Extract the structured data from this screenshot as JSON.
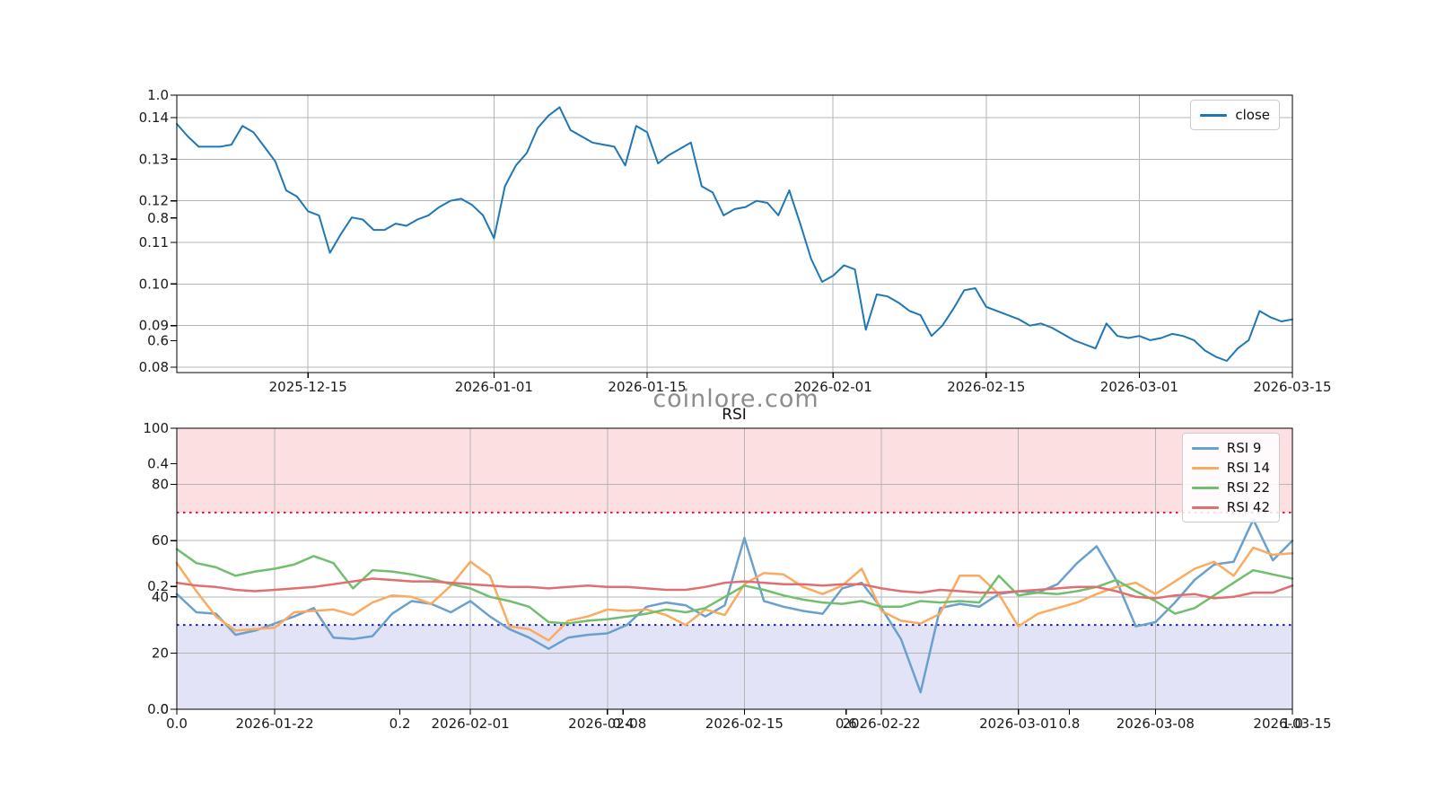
{
  "watermark": "coinlore.com",
  "overlay_axis": {
    "y_labels": [
      "1.0",
      "0.8",
      "0.6",
      "0.4",
      "0.2",
      "0.0"
    ],
    "x_labels": [
      "0.0",
      "0.2",
      "0.4",
      "0.6",
      "0.8",
      "1.0"
    ]
  },
  "chart_data": [
    {
      "type": "line",
      "name": "price",
      "title": "",
      "legend_position": "upper right",
      "grid": true,
      "ylim": [
        0.0787,
        0.1454
      ],
      "yticks": [
        0.08,
        0.09,
        0.1,
        0.11,
        0.12,
        0.13,
        0.14
      ],
      "ytick_labels": [
        "0.08",
        "0.09",
        "0.10",
        "0.11",
        "0.12",
        "0.13",
        "0.14"
      ],
      "xtick_indices": [
        12,
        29,
        43,
        60,
        74,
        88,
        102
      ],
      "x": [
        "2025-12-03",
        "2025-12-04",
        "2025-12-05",
        "2025-12-06",
        "2025-12-07",
        "2025-12-08",
        "2025-12-09",
        "2025-12-10",
        "2025-12-11",
        "2025-12-12",
        "2025-12-13",
        "2025-12-14",
        "2025-12-15",
        "2025-12-16",
        "2025-12-17",
        "2025-12-18",
        "2025-12-19",
        "2025-12-20",
        "2025-12-21",
        "2025-12-22",
        "2025-12-23",
        "2025-12-24",
        "2025-12-25",
        "2025-12-26",
        "2025-12-27",
        "2025-12-28",
        "2025-12-29",
        "2025-12-30",
        "2025-12-31",
        "2026-01-01",
        "2026-01-02",
        "2026-01-03",
        "2026-01-04",
        "2026-01-05",
        "2026-01-06",
        "2026-01-07",
        "2026-01-08",
        "2026-01-09",
        "2026-01-10",
        "2026-01-11",
        "2026-01-12",
        "2026-01-13",
        "2026-01-14",
        "2026-01-15",
        "2026-01-16",
        "2026-01-17",
        "2026-01-18",
        "2026-01-19",
        "2026-01-20",
        "2026-01-21",
        "2026-01-22",
        "2026-01-23",
        "2026-01-24",
        "2026-01-25",
        "2026-01-26",
        "2026-01-27",
        "2026-01-28",
        "2026-01-29",
        "2026-01-30",
        "2026-01-31",
        "2026-02-01",
        "2026-02-02",
        "2026-02-03",
        "2026-02-04",
        "2026-02-05",
        "2026-02-06",
        "2026-02-07",
        "2026-02-08",
        "2026-02-09",
        "2026-02-10",
        "2026-02-11",
        "2026-02-12",
        "2026-02-13",
        "2026-02-14",
        "2026-02-15",
        "2026-02-16",
        "2026-02-17",
        "2026-02-18",
        "2026-02-19",
        "2026-02-20",
        "2026-02-21",
        "2026-02-22",
        "2026-02-23",
        "2026-02-24",
        "2026-02-25",
        "2026-02-26",
        "2026-02-27",
        "2026-02-28",
        "2026-03-01",
        "2026-03-02",
        "2026-03-03",
        "2026-03-04",
        "2026-03-05",
        "2026-03-06",
        "2026-03-07",
        "2026-03-08",
        "2026-03-09",
        "2026-03-10",
        "2026-03-11",
        "2026-03-12",
        "2026-03-13",
        "2026-03-14",
        "2026-03-15"
      ],
      "series": [
        {
          "name": "close",
          "color": "#1f77b4",
          "width": 2,
          "values": [
            0.1385,
            0.1355,
            0.133,
            0.133,
            0.133,
            0.1335,
            0.138,
            0.1365,
            0.133,
            0.1295,
            0.1225,
            0.121,
            0.1175,
            0.1165,
            0.1075,
            0.112,
            0.116,
            0.1155,
            0.113,
            0.113,
            0.1145,
            0.114,
            0.1155,
            0.1165,
            0.1185,
            0.12,
            0.1205,
            0.119,
            0.1165,
            0.111,
            0.1235,
            0.1285,
            0.1315,
            0.1375,
            0.1405,
            0.1425,
            0.137,
            0.1355,
            0.134,
            0.1335,
            0.133,
            0.1285,
            0.138,
            0.1365,
            0.129,
            0.131,
            0.1325,
            0.134,
            0.1235,
            0.122,
            0.1165,
            0.118,
            0.1185,
            0.12,
            0.1195,
            0.1165,
            0.1225,
            0.1145,
            0.106,
            0.1005,
            0.102,
            0.1045,
            0.1035,
            0.089,
            0.0975,
            0.097,
            0.0955,
            0.0935,
            0.0925,
            0.0875,
            0.09,
            0.094,
            0.0985,
            0.099,
            0.0945,
            0.0935,
            0.0925,
            0.0915,
            0.09,
            0.0905,
            0.0895,
            0.088,
            0.0865,
            0.0855,
            0.0845,
            0.0905,
            0.0875,
            0.087,
            0.0875,
            0.0865,
            0.087,
            0.088,
            0.0875,
            0.0865,
            0.084,
            0.0825,
            0.0815,
            0.0845,
            0.0865,
            0.0935,
            0.092,
            0.091,
            0.0915
          ]
        }
      ]
    },
    {
      "type": "line",
      "name": "rsi",
      "title": "RSI",
      "legend_position": "upper right",
      "grid": true,
      "ylim": [
        0,
        100
      ],
      "yticks": [
        0,
        20,
        40,
        60,
        80,
        100
      ],
      "ytick_labels": [
        "0",
        "20",
        "40",
        "60",
        "80",
        "100"
      ],
      "xtick_indices": [
        5,
        15,
        22,
        29,
        36,
        43,
        50,
        57
      ],
      "bands": [
        {
          "from": 70,
          "to": 100,
          "color": "#fcdfe1",
          "meaning": "overbought-zone"
        },
        {
          "from": 0,
          "to": 30,
          "color": "#e3e3f7",
          "meaning": "oversold-zone"
        }
      ],
      "hlines": [
        {
          "y": 70,
          "color": "#dc143c",
          "style": "dotted"
        },
        {
          "y": 30,
          "color": "#1a1acd",
          "style": "dotted"
        }
      ],
      "x": [
        "2026-01-17",
        "2026-01-18",
        "2026-01-19",
        "2026-01-20",
        "2026-01-21",
        "2026-01-22",
        "2026-01-23",
        "2026-01-24",
        "2026-01-25",
        "2026-01-26",
        "2026-01-27",
        "2026-01-28",
        "2026-01-29",
        "2026-01-30",
        "2026-01-31",
        "2026-02-01",
        "2026-02-02",
        "2026-02-03",
        "2026-02-04",
        "2026-02-05",
        "2026-02-06",
        "2026-02-07",
        "2026-02-08",
        "2026-02-09",
        "2026-02-10",
        "2026-02-11",
        "2026-02-12",
        "2026-02-13",
        "2026-02-14",
        "2026-02-15",
        "2026-02-16",
        "2026-02-17",
        "2026-02-18",
        "2026-02-19",
        "2026-02-20",
        "2026-02-21",
        "2026-02-22",
        "2026-02-23",
        "2026-02-24",
        "2026-02-25",
        "2026-02-26",
        "2026-02-27",
        "2026-02-28",
        "2026-03-01",
        "2026-03-02",
        "2026-03-03",
        "2026-03-04",
        "2026-03-05",
        "2026-03-06",
        "2026-03-07",
        "2026-03-08",
        "2026-03-09",
        "2026-03-10",
        "2026-03-11",
        "2026-03-12",
        "2026-03-13",
        "2026-03-14",
        "2026-03-15"
      ],
      "series": [
        {
          "name": "RSI 9",
          "color": "#6ca0cc",
          "width": 2.5,
          "values": [
            41,
            34.5,
            34,
            26.5,
            28,
            30.5,
            33,
            36,
            25.5,
            25,
            26,
            34,
            38.5,
            37.5,
            34.5,
            38.5,
            33,
            28.5,
            25.5,
            21.5,
            25.5,
            26.5,
            27,
            30,
            36.5,
            38,
            37,
            33,
            37,
            61,
            38.5,
            36.5,
            35,
            34,
            43,
            45,
            36,
            25,
            6,
            36,
            37.5,
            36.5,
            41,
            42,
            41.5,
            44.5,
            52,
            58,
            46,
            29.5,
            31,
            38,
            46,
            51.5,
            52.5,
            67.5,
            53,
            60
          ]
        },
        {
          "name": "RSI 14",
          "color": "#faab60",
          "width": 2.5,
          "values": [
            52,
            42,
            33,
            28,
            28.5,
            29,
            34.5,
            35,
            35.5,
            33.5,
            38,
            40.5,
            40,
            37.5,
            44,
            52.5,
            47.5,
            29.5,
            28.5,
            24.5,
            31.5,
            33,
            35.5,
            35,
            35.5,
            33.5,
            30,
            35.5,
            33.5,
            44.5,
            48.5,
            48,
            43.5,
            41,
            44,
            50,
            35,
            31.5,
            30.5,
            34,
            47.5,
            47.5,
            41,
            29.5,
            34,
            36,
            38,
            41,
            43.5,
            45,
            41,
            45.5,
            50,
            52.5,
            47.5,
            57.5,
            55,
            55.5
          ]
        },
        {
          "name": "RSI 22",
          "color": "#71bf6e",
          "width": 2.5,
          "values": [
            57,
            52,
            50.5,
            47.5,
            49,
            50,
            51.5,
            54.5,
            52,
            43,
            49.5,
            49,
            48,
            46.5,
            44.5,
            43,
            40,
            38.5,
            36.5,
            31,
            30.5,
            31.5,
            32,
            33,
            34,
            35.5,
            34.5,
            36,
            40,
            44,
            42.5,
            40.5,
            39,
            38,
            37.5,
            38.5,
            36.5,
            36.5,
            38.5,
            38,
            38.5,
            38,
            47.5,
            40.5,
            41.5,
            41,
            42,
            43.5,
            46,
            42,
            38.5,
            34,
            36,
            40.5,
            45,
            49.5,
            48,
            46.5
          ]
        },
        {
          "name": "RSI 42",
          "color": "#de7071",
          "width": 2.5,
          "values": [
            45,
            44,
            43.5,
            42.5,
            42,
            42.5,
            43,
            43.5,
            44.5,
            45.5,
            46.5,
            46,
            45.5,
            45.5,
            45,
            44.5,
            44,
            43.5,
            43.5,
            43,
            43.5,
            44,
            43.5,
            43.5,
            43,
            42.5,
            42.5,
            43.5,
            45,
            45.5,
            45,
            44.5,
            44.5,
            44,
            44.5,
            44.5,
            43,
            42,
            41.5,
            42.5,
            42,
            41.5,
            41.5,
            42,
            42.5,
            43,
            43.5,
            43.5,
            42,
            40,
            39.5,
            40.5,
            41,
            39.5,
            40,
            41.5,
            41.5,
            44
          ]
        }
      ]
    }
  ]
}
